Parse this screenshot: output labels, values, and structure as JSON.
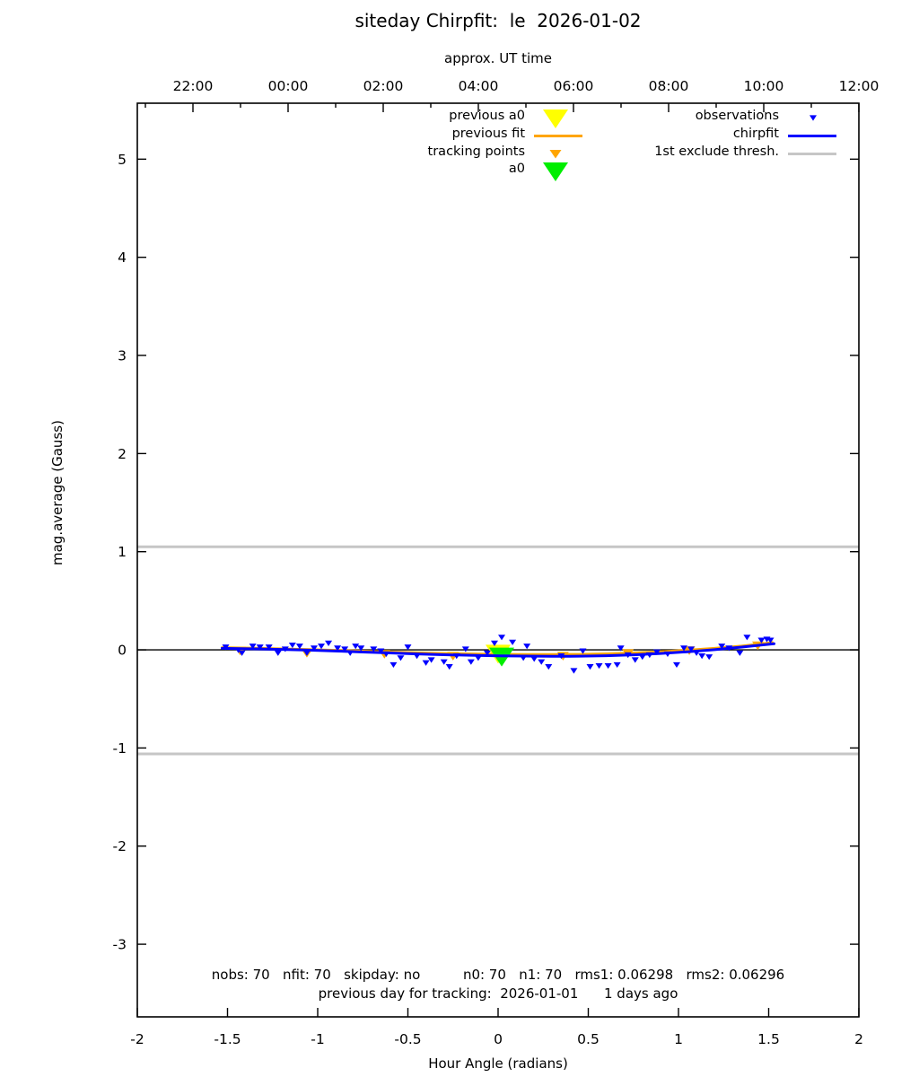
{
  "title": "siteday Chirpfit:  le  2026-01-02",
  "stats": {
    "line1": "nobs: 70   nfit: 70   skipday: no          n0: 70   n1: 70   rms1: 0.06298   rms2: 0.06296",
    "line2": "previous day for tracking:  2026-01-01      1 days ago"
  },
  "legend": {
    "left": [
      {
        "label": "previous a0",
        "swatch": "triangle-large",
        "color": "#ffff00"
      },
      {
        "label": "previous fit",
        "swatch": "line",
        "color": "#ffa500"
      },
      {
        "label": "tracking points",
        "swatch": "triangle-medium",
        "color": "#ffa500"
      },
      {
        "label": "a0",
        "swatch": "triangle-large",
        "color": "#00ee00"
      }
    ],
    "right": [
      {
        "label": "observations",
        "swatch": "triangle-small",
        "color": "#0000ff"
      },
      {
        "label": "chirpfit",
        "swatch": "line",
        "color": "#0000ff"
      },
      {
        "label": "1st exclude thresh.",
        "swatch": "line",
        "color": "#c6c6c6"
      }
    ]
  },
  "chart_data": {
    "type": "scatter",
    "title": "siteday Chirpfit:  le  2026-01-02",
    "xlabel": "Hour Angle (radians)",
    "ylabel": "mag.average (Gauss)",
    "x2label": "approx. UT time",
    "x_axis": {
      "range": [
        -2,
        2
      ],
      "ticks": [
        -2,
        -1.5,
        -1,
        -0.5,
        0,
        0.5,
        1,
        1.5,
        2
      ],
      "tick_labels": [
        "-2",
        "-1.5",
        "-1",
        "-0.5",
        "0",
        "0.5",
        "1",
        "1.5",
        "2"
      ]
    },
    "y_axis": {
      "range": [
        -3.74,
        5.57
      ],
      "ticks": [
        -3,
        -2,
        -1,
        0,
        1,
        2,
        3,
        4,
        5
      ],
      "tick_labels": [
        "-3",
        "-2",
        "-1",
        "0",
        "1",
        "2",
        "3",
        "4",
        "5"
      ]
    },
    "x2_axis": {
      "hours_span": 15,
      "major_labels": [
        "22:00",
        "00:00",
        "02:00",
        "04:00",
        "06:00",
        "08:00",
        "10:00",
        "12:00"
      ]
    },
    "zero_line": true,
    "grid": false,
    "series": [
      {
        "name": "1st exclude thresh.",
        "type": "hlines",
        "color": "#c6c6c6",
        "values": [
          1.05,
          -1.06
        ]
      },
      {
        "name": "previous a0",
        "type": "points",
        "marker": "triangle-large",
        "color": "#ffff00",
        "points": [
          [
            0.0,
            -0.03
          ]
        ]
      },
      {
        "name": "previous fit",
        "type": "line",
        "color": "#ffa500",
        "points": [
          [
            -1.53,
            0.022
          ],
          [
            -1.35,
            0.016
          ],
          [
            -1.2,
            0.01
          ],
          [
            -1.05,
            0.003
          ],
          [
            -0.9,
            -0.005
          ],
          [
            -0.75,
            -0.013
          ],
          [
            -0.6,
            -0.022
          ],
          [
            -0.45,
            -0.03
          ],
          [
            -0.3,
            -0.037
          ],
          [
            -0.15,
            -0.042
          ],
          [
            0,
            -0.046
          ],
          [
            0.15,
            -0.048
          ],
          [
            0.3,
            -0.048
          ],
          [
            0.45,
            -0.046
          ],
          [
            0.6,
            -0.041
          ],
          [
            0.75,
            -0.032
          ],
          [
            0.9,
            -0.02
          ],
          [
            1.05,
            -0.004
          ],
          [
            1.2,
            0.015
          ],
          [
            1.35,
            0.038
          ],
          [
            1.45,
            0.058
          ],
          [
            1.52,
            0.075
          ]
        ]
      },
      {
        "name": "tracking points",
        "type": "points",
        "marker": "triangle-medium",
        "color": "#ffa500",
        "points": [
          [
            -1.43,
            -0.005
          ],
          [
            -1.06,
            -0.028
          ],
          [
            -0.63,
            -0.038
          ],
          [
            -0.25,
            -0.058
          ],
          [
            0.03,
            -0.05
          ],
          [
            0.36,
            -0.058
          ],
          [
            0.72,
            -0.03
          ],
          [
            1.06,
            -0.002
          ],
          [
            1.44,
            0.048
          ]
        ]
      },
      {
        "name": "a0",
        "type": "points",
        "marker": "triangle-large",
        "color": "#00ee00",
        "points": [
          [
            0.02,
            -0.06
          ]
        ]
      },
      {
        "name": "observations",
        "type": "points",
        "marker": "triangle-small",
        "color": "#0000ff",
        "points": [
          [
            -1.51,
            0.03
          ],
          [
            -1.44,
            0.0
          ],
          [
            -1.42,
            -0.03
          ],
          [
            -1.36,
            0.04
          ],
          [
            -1.32,
            0.03
          ],
          [
            -1.27,
            0.03
          ],
          [
            -1.22,
            -0.03
          ],
          [
            -1.18,
            0.01
          ],
          [
            -1.14,
            0.05
          ],
          [
            -1.1,
            0.04
          ],
          [
            -1.06,
            -0.03
          ],
          [
            -1.02,
            0.02
          ],
          [
            -0.98,
            0.04
          ],
          [
            -0.94,
            0.07
          ],
          [
            -0.89,
            0.02
          ],
          [
            -0.85,
            0.01
          ],
          [
            -0.82,
            -0.03
          ],
          [
            -0.79,
            0.04
          ],
          [
            -0.76,
            0.02
          ],
          [
            -0.69,
            0.01
          ],
          [
            -0.65,
            -0.01
          ],
          [
            -0.62,
            -0.04
          ],
          [
            -0.58,
            -0.15
          ],
          [
            -0.54,
            -0.08
          ],
          [
            -0.5,
            0.03
          ],
          [
            -0.45,
            -0.06
          ],
          [
            -0.4,
            -0.13
          ],
          [
            -0.37,
            -0.1
          ],
          [
            -0.3,
            -0.12
          ],
          [
            -0.27,
            -0.17
          ],
          [
            -0.23,
            -0.06
          ],
          [
            -0.18,
            0.01
          ],
          [
            -0.15,
            -0.12
          ],
          [
            -0.11,
            -0.08
          ],
          [
            -0.06,
            -0.03
          ],
          [
            -0.02,
            0.07
          ],
          [
            0.02,
            0.13
          ],
          [
            0.08,
            0.08
          ],
          [
            0.14,
            -0.08
          ],
          [
            0.16,
            0.04
          ],
          [
            0.2,
            -0.09
          ],
          [
            0.24,
            -0.12
          ],
          [
            0.28,
            -0.17
          ],
          [
            0.35,
            -0.06
          ],
          [
            0.42,
            -0.21
          ],
          [
            0.47,
            -0.01
          ],
          [
            0.51,
            -0.17
          ],
          [
            0.56,
            -0.16
          ],
          [
            0.61,
            -0.16
          ],
          [
            0.66,
            -0.15
          ],
          [
            0.68,
            0.02
          ],
          [
            0.72,
            -0.05
          ],
          [
            0.76,
            -0.1
          ],
          [
            0.8,
            -0.07
          ],
          [
            0.84,
            -0.05
          ],
          [
            0.88,
            -0.02
          ],
          [
            0.94,
            -0.04
          ],
          [
            0.99,
            -0.15
          ],
          [
            1.03,
            0.02
          ],
          [
            1.07,
            0.01
          ],
          [
            1.1,
            -0.03
          ],
          [
            1.13,
            -0.06
          ],
          [
            1.17,
            -0.07
          ],
          [
            1.24,
            0.04
          ],
          [
            1.28,
            0.02
          ],
          [
            1.34,
            -0.03
          ],
          [
            1.38,
            0.13
          ],
          [
            1.46,
            0.1
          ],
          [
            1.49,
            0.11
          ],
          [
            1.51,
            0.1
          ]
        ]
      },
      {
        "name": "chirpfit",
        "type": "line",
        "color": "#0000ff",
        "points": [
          [
            -1.53,
            0.015
          ],
          [
            -1.35,
            0.01
          ],
          [
            -1.2,
            0.004
          ],
          [
            -1.05,
            -0.003
          ],
          [
            -0.9,
            -0.012
          ],
          [
            -0.75,
            -0.022
          ],
          [
            -0.6,
            -0.032
          ],
          [
            -0.45,
            -0.042
          ],
          [
            -0.3,
            -0.05
          ],
          [
            -0.15,
            -0.056
          ],
          [
            0,
            -0.061
          ],
          [
            0.15,
            -0.064
          ],
          [
            0.3,
            -0.066
          ],
          [
            0.45,
            -0.065
          ],
          [
            0.6,
            -0.06
          ],
          [
            0.75,
            -0.051
          ],
          [
            0.9,
            -0.037
          ],
          [
            1.05,
            -0.02
          ],
          [
            1.2,
            0.002
          ],
          [
            1.35,
            0.028
          ],
          [
            1.45,
            0.047
          ],
          [
            1.53,
            0.062
          ]
        ]
      }
    ]
  }
}
